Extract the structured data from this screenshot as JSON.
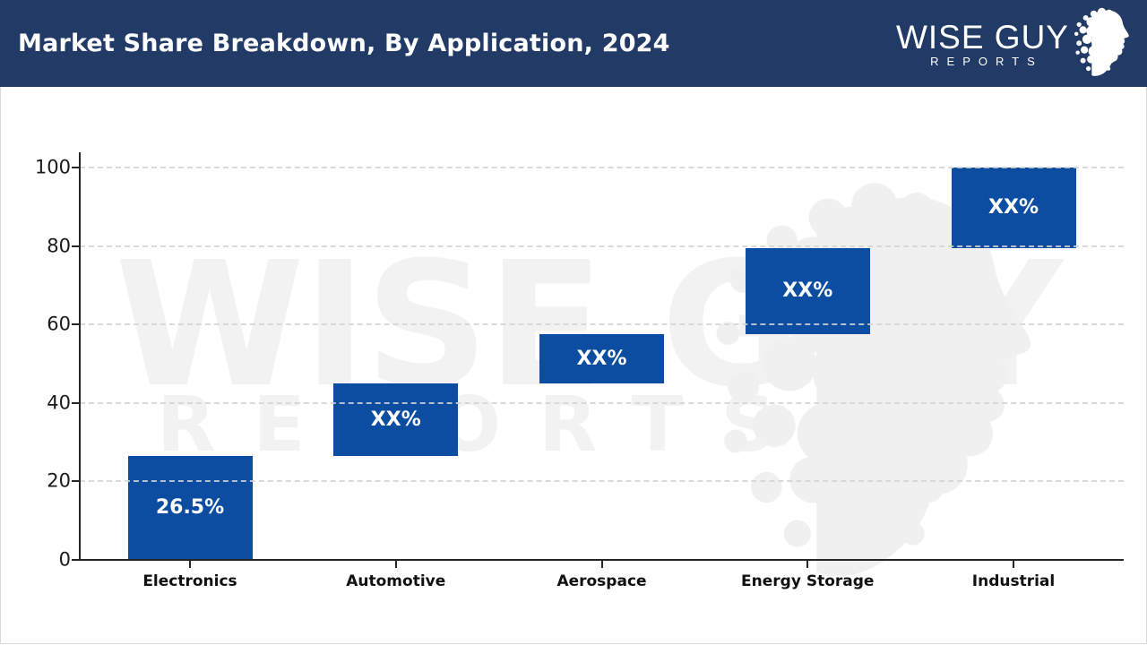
{
  "header": {
    "title": "Market Share Breakdown, By Application, 2024",
    "logo": {
      "line1": "WISE GUY",
      "line2": "REPORTS"
    }
  },
  "watermark": {
    "line1": "WISE GUY",
    "line2": "REPORTS"
  },
  "colors": {
    "header_bg": "#213a66",
    "bar": "#0c4da2",
    "bar_label": "#ffffff",
    "grid": "#d4d4d4",
    "axis": "#262626",
    "watermark": "#f1f1f1"
  },
  "chart_data": {
    "type": "bar",
    "subtype": "waterfall",
    "title": "Market Share Breakdown, By Application, 2024",
    "xlabel": "",
    "ylabel": "",
    "categories": [
      "Electronics",
      "Automotive",
      "Aerospace",
      "Energy Storage",
      "Industrial"
    ],
    "segments": [
      {
        "category": "Electronics",
        "start": 0,
        "end": 26.5,
        "value": 26.5,
        "label": "26.5%"
      },
      {
        "category": "Automotive",
        "start": 26.5,
        "end": 45,
        "value": 18.5,
        "label": "XX%"
      },
      {
        "category": "Aerospace",
        "start": 45,
        "end": 57.5,
        "value": 12.5,
        "label": "XX%"
      },
      {
        "category": "Energy Storage",
        "start": 57.5,
        "end": 79.5,
        "value": 22,
        "label": "XX%"
      },
      {
        "category": "Industrial",
        "start": 79.5,
        "end": 100,
        "value": 20.5,
        "label": "XX%"
      }
    ],
    "y_ticks": [
      0,
      20,
      40,
      60,
      80,
      100
    ],
    "ylim": [
      0,
      100
    ],
    "grid": "horizontal dashed",
    "legend": "none"
  }
}
